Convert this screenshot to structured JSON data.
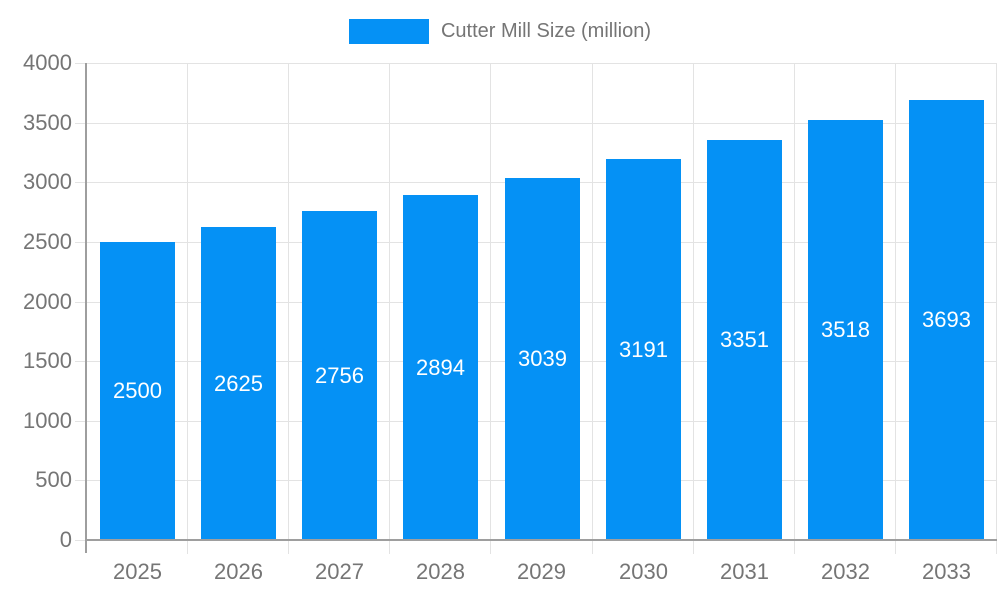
{
  "legend": {
    "label": "Cutter Mill Size (million)"
  },
  "chart_data": {
    "type": "bar",
    "title": "",
    "categories": [
      "2025",
      "2026",
      "2027",
      "2028",
      "2029",
      "2030",
      "2031",
      "2032",
      "2033"
    ],
    "series": [
      {
        "name": "Cutter Mill Size (million)",
        "values": [
          2500,
          2625,
          2756,
          2894,
          3039,
          3191,
          3351,
          3518,
          3693
        ]
      }
    ],
    "xlabel": "",
    "ylabel": "",
    "ylim": [
      0,
      4000
    ],
    "yticks": [
      0,
      500,
      1000,
      1500,
      2000,
      2500,
      3000,
      3500,
      4000
    ],
    "grid": true,
    "legend_position": "top",
    "value_labels": "inside-center"
  },
  "colors": {
    "bar": "#0591f5",
    "bar_label": "#ffffff",
    "axis_text": "#757575",
    "gridline": "#e3e3e3",
    "axis_line": "#9e9e9e",
    "background": "#ffffff"
  }
}
